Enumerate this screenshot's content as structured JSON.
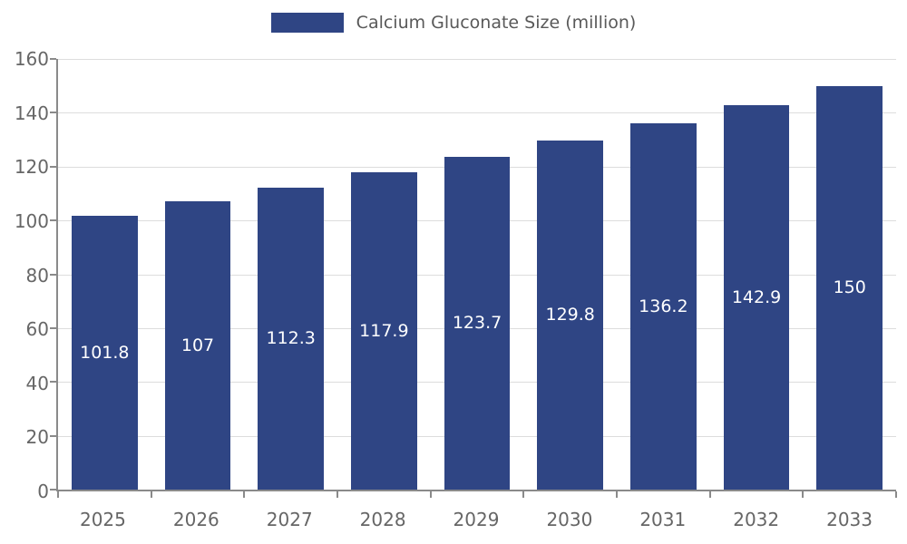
{
  "legend": {
    "label": "Calcium Gluconate Size (million)"
  },
  "chart_data": {
    "type": "bar",
    "title": "Calcium Gluconate Size (million)",
    "categories": [
      "2025",
      "2026",
      "2027",
      "2028",
      "2029",
      "2030",
      "2031",
      "2032",
      "2033"
    ],
    "values": [
      101.8,
      107,
      112.3,
      117.9,
      123.7,
      129.8,
      136.2,
      142.9,
      150
    ],
    "xlabel": "",
    "ylabel": "",
    "ylim": [
      0,
      160
    ],
    "yticks": [
      0,
      20,
      40,
      60,
      80,
      100,
      120,
      140,
      160
    ],
    "grid": true,
    "legend_position": "top",
    "bar_color": "#2F4584",
    "value_label_color": "#ffffff",
    "axis_text_color": "#666666",
    "axis_line_color": "#8a8a8a",
    "gridline_color": "#dddddd"
  }
}
